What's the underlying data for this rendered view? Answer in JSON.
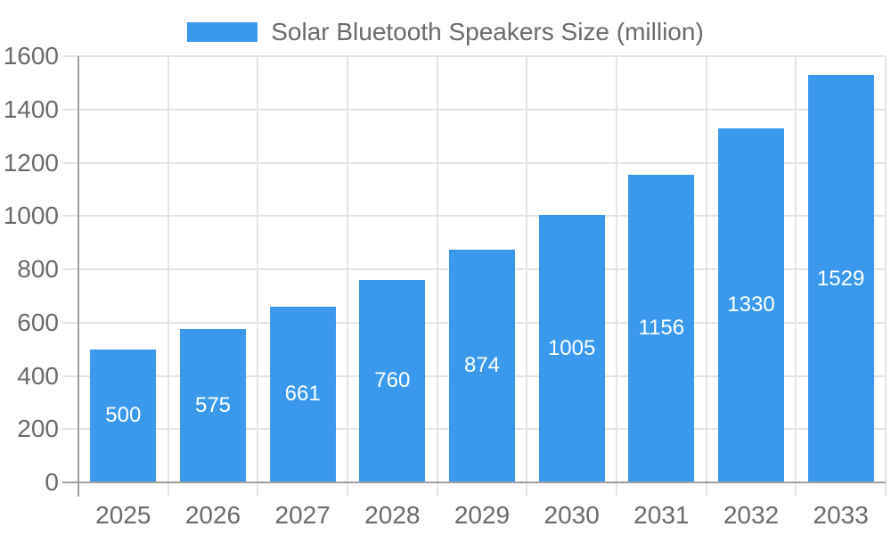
{
  "chart_data": {
    "type": "bar",
    "title": "Solar Bluetooth Speakers Size (million)",
    "legend": [
      "Solar Bluetooth Speakers Size (million)"
    ],
    "legend_position": "top",
    "categories": [
      "2025",
      "2026",
      "2027",
      "2028",
      "2029",
      "2030",
      "2031",
      "2032",
      "2033"
    ],
    "series": [
      {
        "name": "Solar Bluetooth Speakers Size (million)",
        "values": [
          500,
          575,
          661,
          760,
          874,
          1005,
          1156,
          1330,
          1529
        ]
      }
    ],
    "xlabel": "",
    "ylabel": "",
    "ylim": [
      0,
      1600
    ],
    "yticks": [
      0,
      200,
      400,
      600,
      800,
      1000,
      1200,
      1400,
      1600
    ],
    "grid": true,
    "bar_value_labels": "inside-center"
  },
  "colors": {
    "bar": "#3A99EC",
    "grid": "#e4e4e4",
    "axis": "#a0a0a0",
    "text": "#6b6b6b",
    "bar_label": "#ffffff",
    "background": "#ffffff"
  }
}
